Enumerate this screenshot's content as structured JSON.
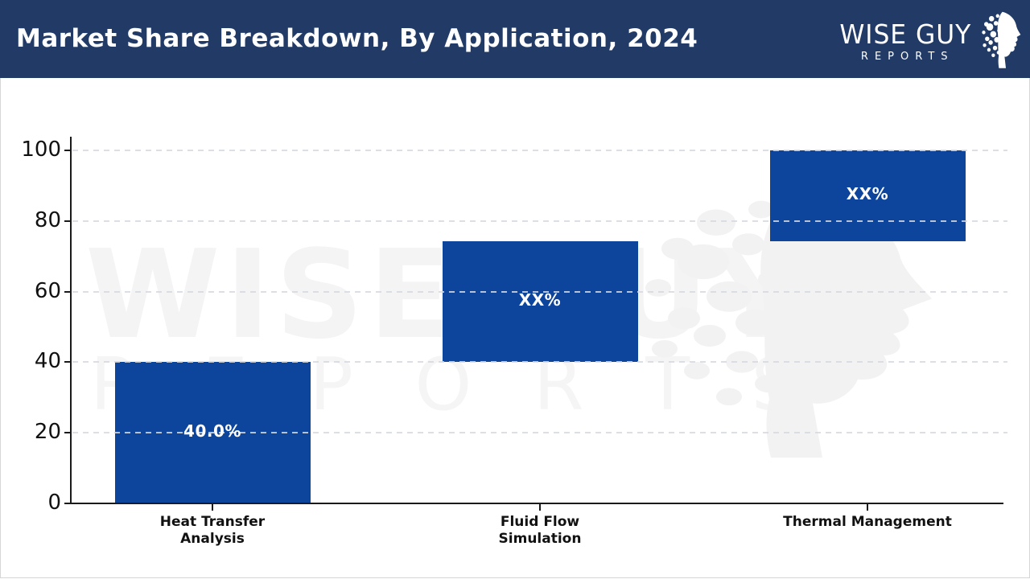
{
  "header": {
    "title": "Market Share Breakdown, By Application, 2024",
    "logo_line1": "WISE GUY",
    "logo_line2": "REPORTS"
  },
  "watermark": {
    "line1": "WISE GUY",
    "line2": "R E P O R T S"
  },
  "colors": {
    "header_bg": "#213a66",
    "bar": "#0d459c",
    "grid": "#d9d9d9",
    "axis": "#1a1a1a",
    "watermark": "#f4f4f4",
    "bar_label": "#ffffff"
  },
  "chart_data": {
    "type": "bar",
    "subtype": "waterfall",
    "title": "Market Share Breakdown, By Application, 2024",
    "categories": [
      "Heat Transfer Analysis",
      "Fluid Flow Simulation",
      "Thermal Management"
    ],
    "category_lines": [
      [
        "Heat Transfer",
        "Analysis"
      ],
      [
        "Fluid Flow",
        "Simulation"
      ],
      [
        "Thermal Management"
      ]
    ],
    "segments": [
      {
        "category": "Heat Transfer Analysis",
        "start": 0,
        "end": 40,
        "value": 40.0,
        "label": "40.0%"
      },
      {
        "category": "Fluid Flow Simulation",
        "start": 40,
        "end": 74.3,
        "value": 34.3,
        "label": "XX%"
      },
      {
        "category": "Thermal Management",
        "start": 74.3,
        "end": 100,
        "value": 25.7,
        "label": "XX%"
      }
    ],
    "yticks": [
      0,
      20,
      40,
      60,
      80,
      100
    ],
    "ylim": [
      0,
      104
    ],
    "xlabel": "",
    "ylabel": "",
    "grid": "dashed-horizontal-above-bars",
    "legend": "none"
  }
}
